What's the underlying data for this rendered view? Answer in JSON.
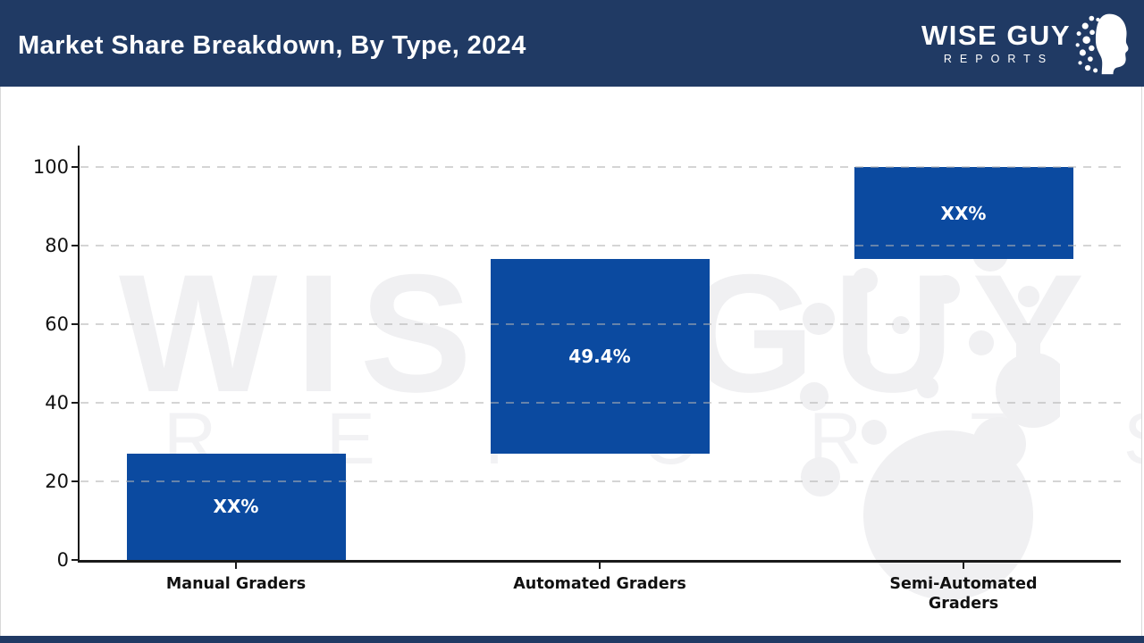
{
  "header": {
    "title": "Market Share Breakdown, By Type, 2024",
    "bg_color": "#203a64",
    "logo": {
      "line1": "WISE GUY",
      "line2": "REPORTS"
    }
  },
  "watermark": {
    "row1": "WISE GUY",
    "row2": "R E P O R T S"
  },
  "chart_data": {
    "type": "bar",
    "subtype": "waterfall",
    "title": "Market Share Breakdown, By Type, 2024",
    "categories": [
      "Manual Graders",
      "Automated Graders",
      "Semi-Automated Graders"
    ],
    "categories_display": [
      [
        "Manual Graders"
      ],
      [
        "Automated Graders"
      ],
      [
        "Semi-Automated",
        "Graders"
      ]
    ],
    "segments": [
      {
        "category": "Manual Graders",
        "start": 0,
        "end": 27.1,
        "value": 27.1,
        "label": "XX%"
      },
      {
        "category": "Automated Graders",
        "start": 27.1,
        "end": 76.5,
        "value": 49.4,
        "label": "49.4%"
      },
      {
        "category": "Semi-Automated Graders",
        "start": 76.5,
        "end": 100,
        "value": 23.5,
        "label": "XX%"
      }
    ],
    "xlabel": "",
    "ylabel": "",
    "ylim": [
      0,
      105.5
    ],
    "yticks": [
      0,
      20,
      40,
      60,
      80,
      100
    ],
    "grid": {
      "horizontal": true,
      "style": "dashed"
    },
    "legend": "none",
    "bar_color": "#0b4aa0",
    "bar_label_color": "#ffffff",
    "axis_color": "#1a1a1a"
  },
  "colors": {
    "header_bg": "#203a64",
    "footer_bg": "#203a64",
    "card_border": "#d9d9d9",
    "watermark": "#f0f0f2"
  }
}
